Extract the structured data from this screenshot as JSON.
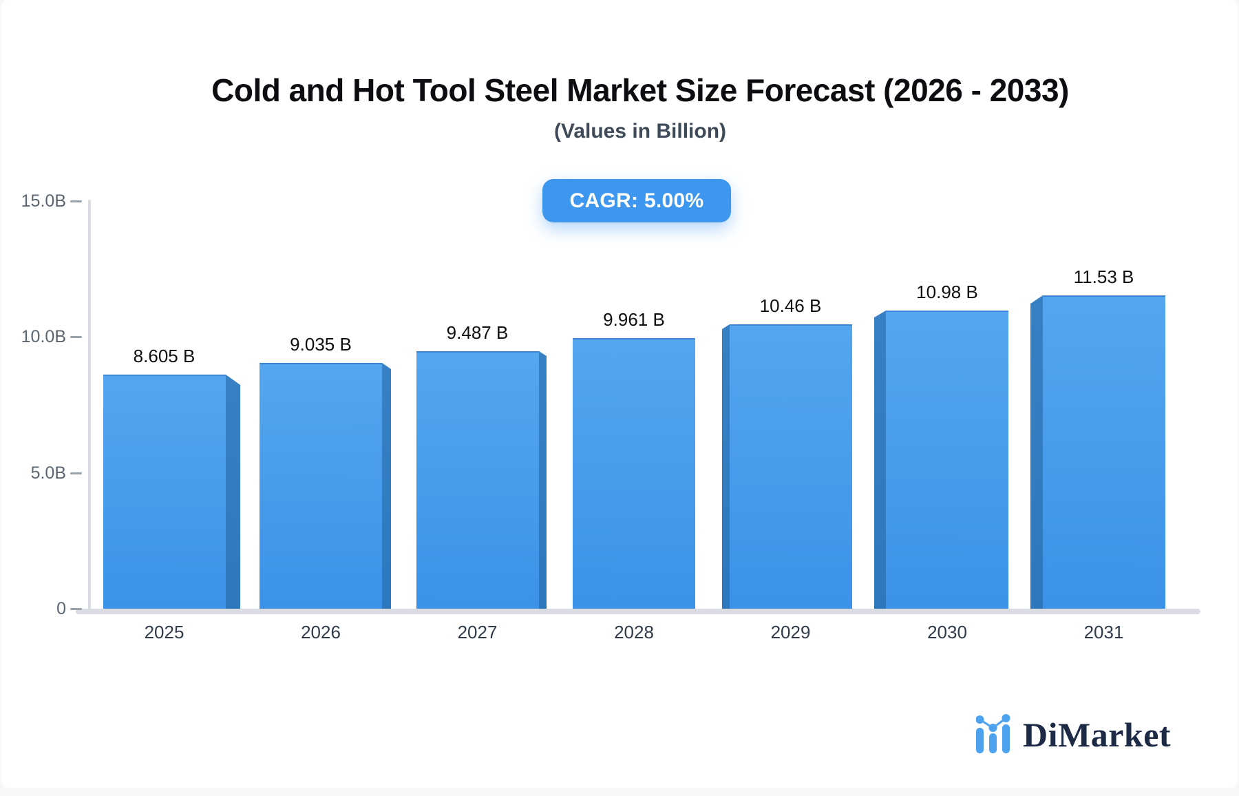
{
  "header": {
    "title": "Cold and Hot Tool Steel Market Size Forecast (2026 - 2033)",
    "subtitle": "(Values in Billion)"
  },
  "badge": {
    "label": "CAGR: 5.00%"
  },
  "chart_data": {
    "type": "bar",
    "title": "Cold and Hot Tool Steel Market Size Forecast (2026 - 2033)",
    "subtitle": "(Values in Billion)",
    "cagr": "5.00%",
    "unit": "Billion",
    "categories": [
      "2025",
      "2026",
      "2027",
      "2028",
      "2029",
      "2030",
      "2031"
    ],
    "values": [
      8.605,
      9.035,
      9.487,
      9.961,
      10.46,
      10.98,
      11.53
    ],
    "value_labels": [
      "8.605 B",
      "9.035 B",
      "9.487 B",
      "9.961 B",
      "10.46 B",
      "10.98 B",
      "11.53 B"
    ],
    "y_ticks": [
      {
        "label": "15.0B",
        "value": 15
      },
      {
        "label": "10.0B",
        "value": 10
      },
      {
        "label": "5.0B",
        "value": 5
      },
      {
        "label": "0",
        "value": 0
      }
    ],
    "ylim": [
      0,
      15
    ],
    "grid": false,
    "legend": false
  },
  "colors": {
    "accent_blue": "#3E97EE",
    "bar_face_top": "#55A6EF",
    "bar_face_bottom": "#3B92E8",
    "bar_side": "#2D78BD",
    "bar_top_edge": "#3A86D2",
    "axis_line": "#D9DCE1",
    "tick_mark": "#9AA2AC",
    "y_tick_label": "#5B6672",
    "x_tick_label": "#2F3B4A",
    "value_label": "#0C0E11",
    "title_text": "#0B0D10",
    "subtitle_text": "#3F4A59",
    "logo_navy": "#1C2A46",
    "logo_blue": "#4DA2F0",
    "card_background": "#FFFFFF",
    "page_background": "#F6F8FA"
  },
  "logo": {
    "text": "DiMarket"
  }
}
